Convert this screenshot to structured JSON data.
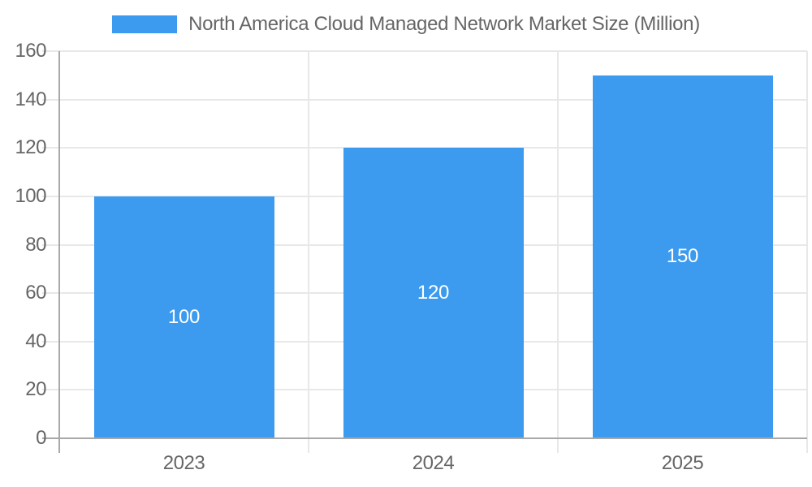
{
  "legend": {
    "label": "North America Cloud Managed Network Market Size (Million)"
  },
  "chart_data": {
    "type": "bar",
    "title": "North America Cloud Managed Network Market Size (Million)",
    "categories": [
      "2023",
      "2024",
      "2025"
    ],
    "series": [
      {
        "name": "North America Cloud Managed Network Market Size (Million)",
        "values": [
          100,
          120,
          150
        ]
      }
    ],
    "data_labels": [
      "100",
      "120",
      "150"
    ],
    "xlabel": "",
    "ylabel": "",
    "ylim": [
      0,
      160
    ],
    "yticks": [
      0,
      20,
      40,
      60,
      80,
      100,
      120,
      140,
      160
    ],
    "grid": true,
    "legend_position": "top",
    "colors": {
      "bar": "#3C9BEE",
      "axis_text": "#666666",
      "grid_line": "#e8e8e8",
      "axis_line": "#a8a8a8",
      "data_label": "#ffffff",
      "background": "#ffffff"
    }
  }
}
